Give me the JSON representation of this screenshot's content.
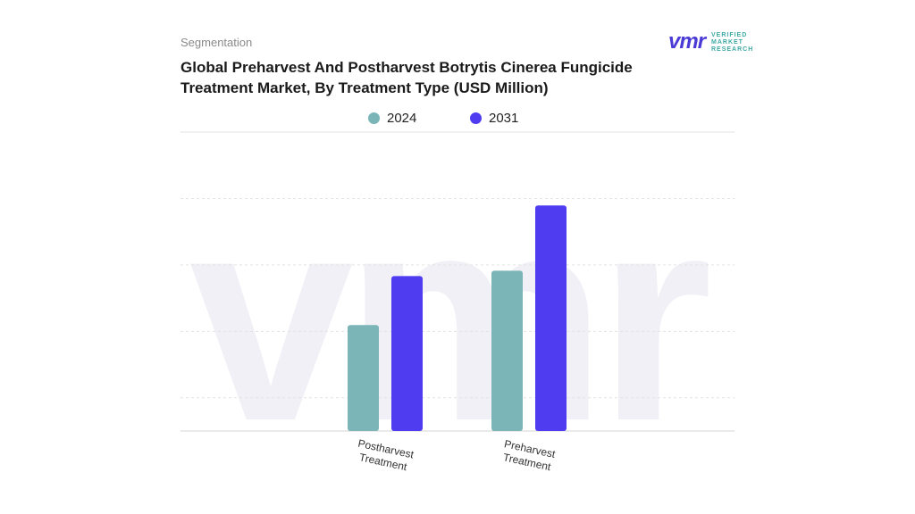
{
  "header": {
    "segment_label": "Segmentation",
    "title_line1": "Global Preharvest And Postharvest Botrytis Cinerea Fungicide",
    "title_line2": "Treatment Market, By Treatment Type (USD Million)"
  },
  "logo": {
    "mark": "vmr",
    "line1": "VERIFIED",
    "line2": "MARKET",
    "line3": "RESEARCH"
  },
  "colors": {
    "series_2024": "#7bb5b8",
    "series_2031": "#4f3cf0",
    "grid": "#e3e3e3",
    "watermark": "#f0f0f6"
  },
  "chart_data": {
    "type": "bar",
    "title": "Global Preharvest And Postharvest Botrytis Cinerea Fungicide Treatment Market, By Treatment Type (USD Million)",
    "categories": [
      [
        "Postharvest",
        "Treatment"
      ],
      [
        "Preharvest",
        "Treatment"
      ]
    ],
    "series": [
      {
        "name": "2024",
        "values": [
          39,
          59
        ]
      },
      {
        "name": "2031",
        "values": [
          57,
          83
        ]
      }
    ],
    "ylim": [
      0,
      110
    ],
    "grid": true,
    "legend_position": "top-center",
    "xlabel": "",
    "ylabel": ""
  }
}
